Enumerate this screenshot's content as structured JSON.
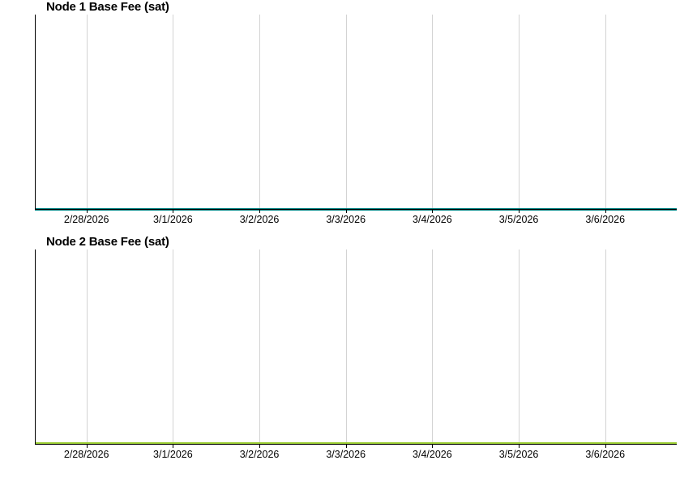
{
  "page": {
    "background": "#ffffff"
  },
  "colors": {
    "axis": "#000000",
    "grid": "#d3d3d3",
    "text": "#000000",
    "title_text": "#000000"
  },
  "charts": [
    {
      "title": "Node 1 Base Fee (sat)",
      "line_color": "#008080",
      "x_labels": [
        "2/28/2026",
        "3/1/2026",
        "3/2/2026",
        "3/3/2026",
        "3/4/2026",
        "3/5/2026",
        "3/6/2026"
      ]
    },
    {
      "title": "Node 2 Base Fee (sat)",
      "line_color": "#9acd32",
      "x_labels": [
        "2/28/2026",
        "3/1/2026",
        "3/2/2026",
        "3/3/2026",
        "3/4/2026",
        "3/5/2026",
        "3/6/2026"
      ]
    }
  ],
  "chart_data": [
    {
      "type": "line",
      "title": "Node 1 Base Fee (sat)",
      "x": [
        "2/28/2026",
        "3/1/2026",
        "3/2/2026",
        "3/3/2026",
        "3/4/2026",
        "3/5/2026",
        "3/6/2026"
      ],
      "series": [
        {
          "name": "Node 1 Base Fee (sat)",
          "values": [
            0,
            0,
            0,
            0,
            0,
            0,
            0
          ]
        }
      ],
      "xlabel": "",
      "ylabel": "",
      "y_tick_labels_visible": false,
      "grid": "vertical-only",
      "legend": "none",
      "line_color": "#008080",
      "note": "flat line running along the x-axis for the full plot width (constant value at axis minimum, reads as 0)"
    },
    {
      "type": "line",
      "title": "Node 2 Base Fee (sat)",
      "x": [
        "2/28/2026",
        "3/1/2026",
        "3/2/2026",
        "3/3/2026",
        "3/4/2026",
        "3/5/2026",
        "3/6/2026"
      ],
      "series": [
        {
          "name": "Node 2 Base Fee (sat)",
          "values": [
            0,
            0,
            0,
            0,
            0,
            0,
            0
          ]
        }
      ],
      "xlabel": "",
      "ylabel": "",
      "y_tick_labels_visible": false,
      "grid": "vertical-only",
      "legend": "none",
      "line_color": "#9acd32",
      "note": "flat line running along the x-axis for the full plot width (constant value at axis minimum, reads as 0)"
    }
  ]
}
